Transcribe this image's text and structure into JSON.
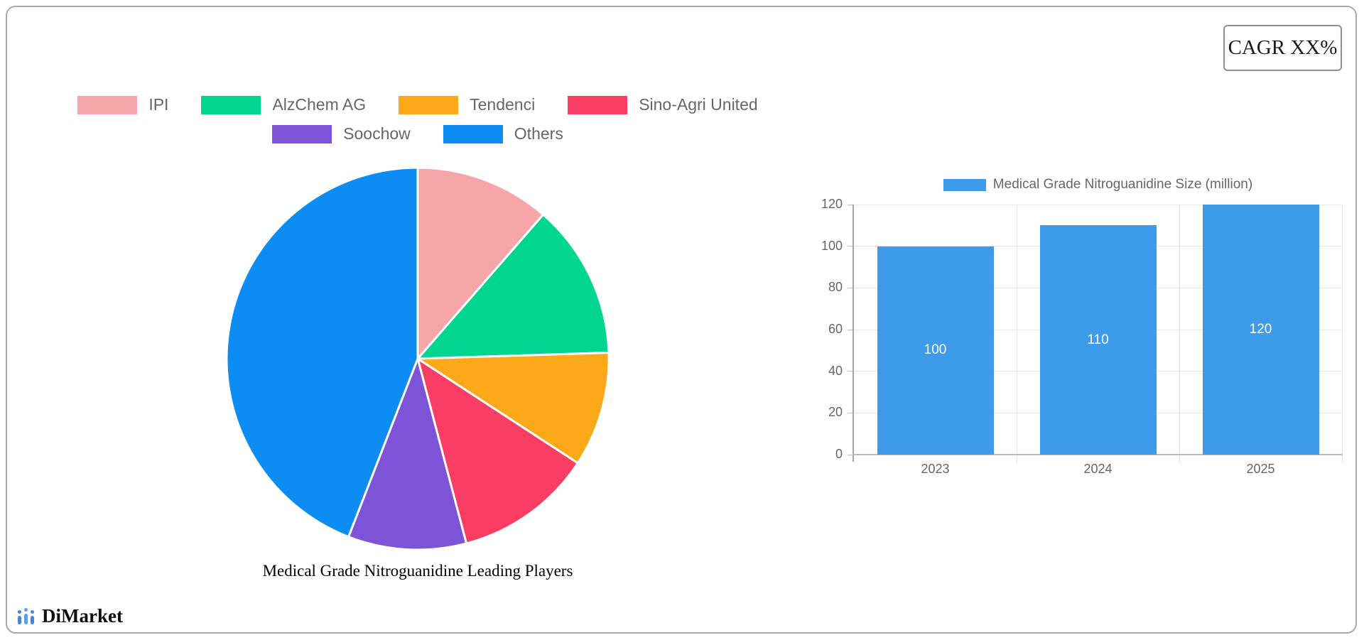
{
  "header": {
    "cagr_label": "CAGR XX%"
  },
  "footer": {
    "brand_name": "DiMarket"
  },
  "chart_data": [
    {
      "type": "pie",
      "title": "Medical Grade Nitroguanidine Leading Players",
      "labels": [
        "IPI",
        "AlzChem AG",
        "Tendenci",
        "Sino-Agri United",
        "Soochow",
        "Others"
      ],
      "values_percent": [
        11.4,
        13.1,
        9.7,
        11.7,
        10.0,
        44.1
      ],
      "colors": [
        "#F6A6A8",
        "#00D68F",
        "#FBA918",
        "#FA3D63",
        "#7D53D8",
        "#0D8DF4"
      ],
      "slice_border_color": "#FFFFFF",
      "start_angle_deg": 0,
      "direction": "clockwise",
      "legend_position": "top",
      "legend_row_split": 4
    },
    {
      "type": "bar",
      "legend_label": "Medical Grade Nitroguanidine Size (million)",
      "categories": [
        "2023",
        "2024",
        "2025"
      ],
      "values": [
        100,
        110,
        120
      ],
      "bar_color": "#3E9BEA",
      "value_label_color": "#FFFFFF",
      "y_ticks": [
        0,
        20,
        40,
        60,
        80,
        100,
        120
      ],
      "ylim": [
        0,
        120
      ],
      "grid": true,
      "legend_position": "top"
    }
  ]
}
